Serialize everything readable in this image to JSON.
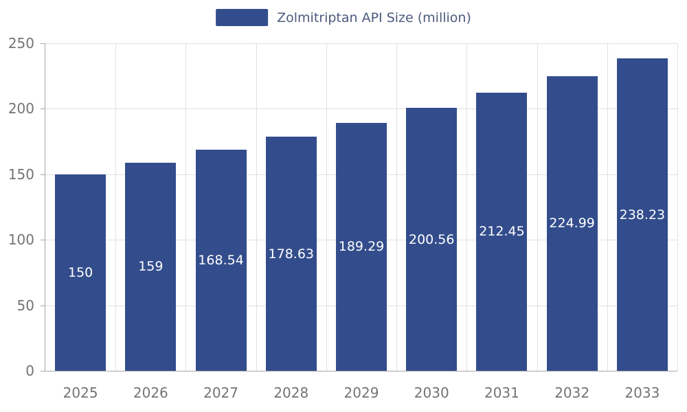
{
  "legend": {
    "label": "Zolmitriptan API Size (million)",
    "swatch_color": "#334d8c"
  },
  "chart_data": {
    "type": "bar",
    "title": "Zolmitriptan API Size (million)",
    "categories": [
      "2025",
      "2026",
      "2027",
      "2028",
      "2029",
      "2030",
      "2031",
      "2032",
      "2033"
    ],
    "values": [
      150,
      159,
      168.54,
      178.63,
      189.29,
      200.56,
      212.45,
      224.99,
      238.23
    ],
    "value_labels": [
      "150",
      "159",
      "168.54",
      "178.63",
      "189.29",
      "200.56",
      "212.45",
      "224.99",
      "238.23"
    ],
    "xlabel": "",
    "ylabel": "",
    "ylim": [
      0,
      250
    ],
    "yticks": [
      0,
      50,
      100,
      150,
      200,
      250
    ],
    "grid": true,
    "legend_position": "top-center",
    "bar_color": "#334d8c",
    "value_label_color": "#ffffff",
    "axis_text_color": "#737373",
    "gridline_color": "#e0e0e0"
  }
}
